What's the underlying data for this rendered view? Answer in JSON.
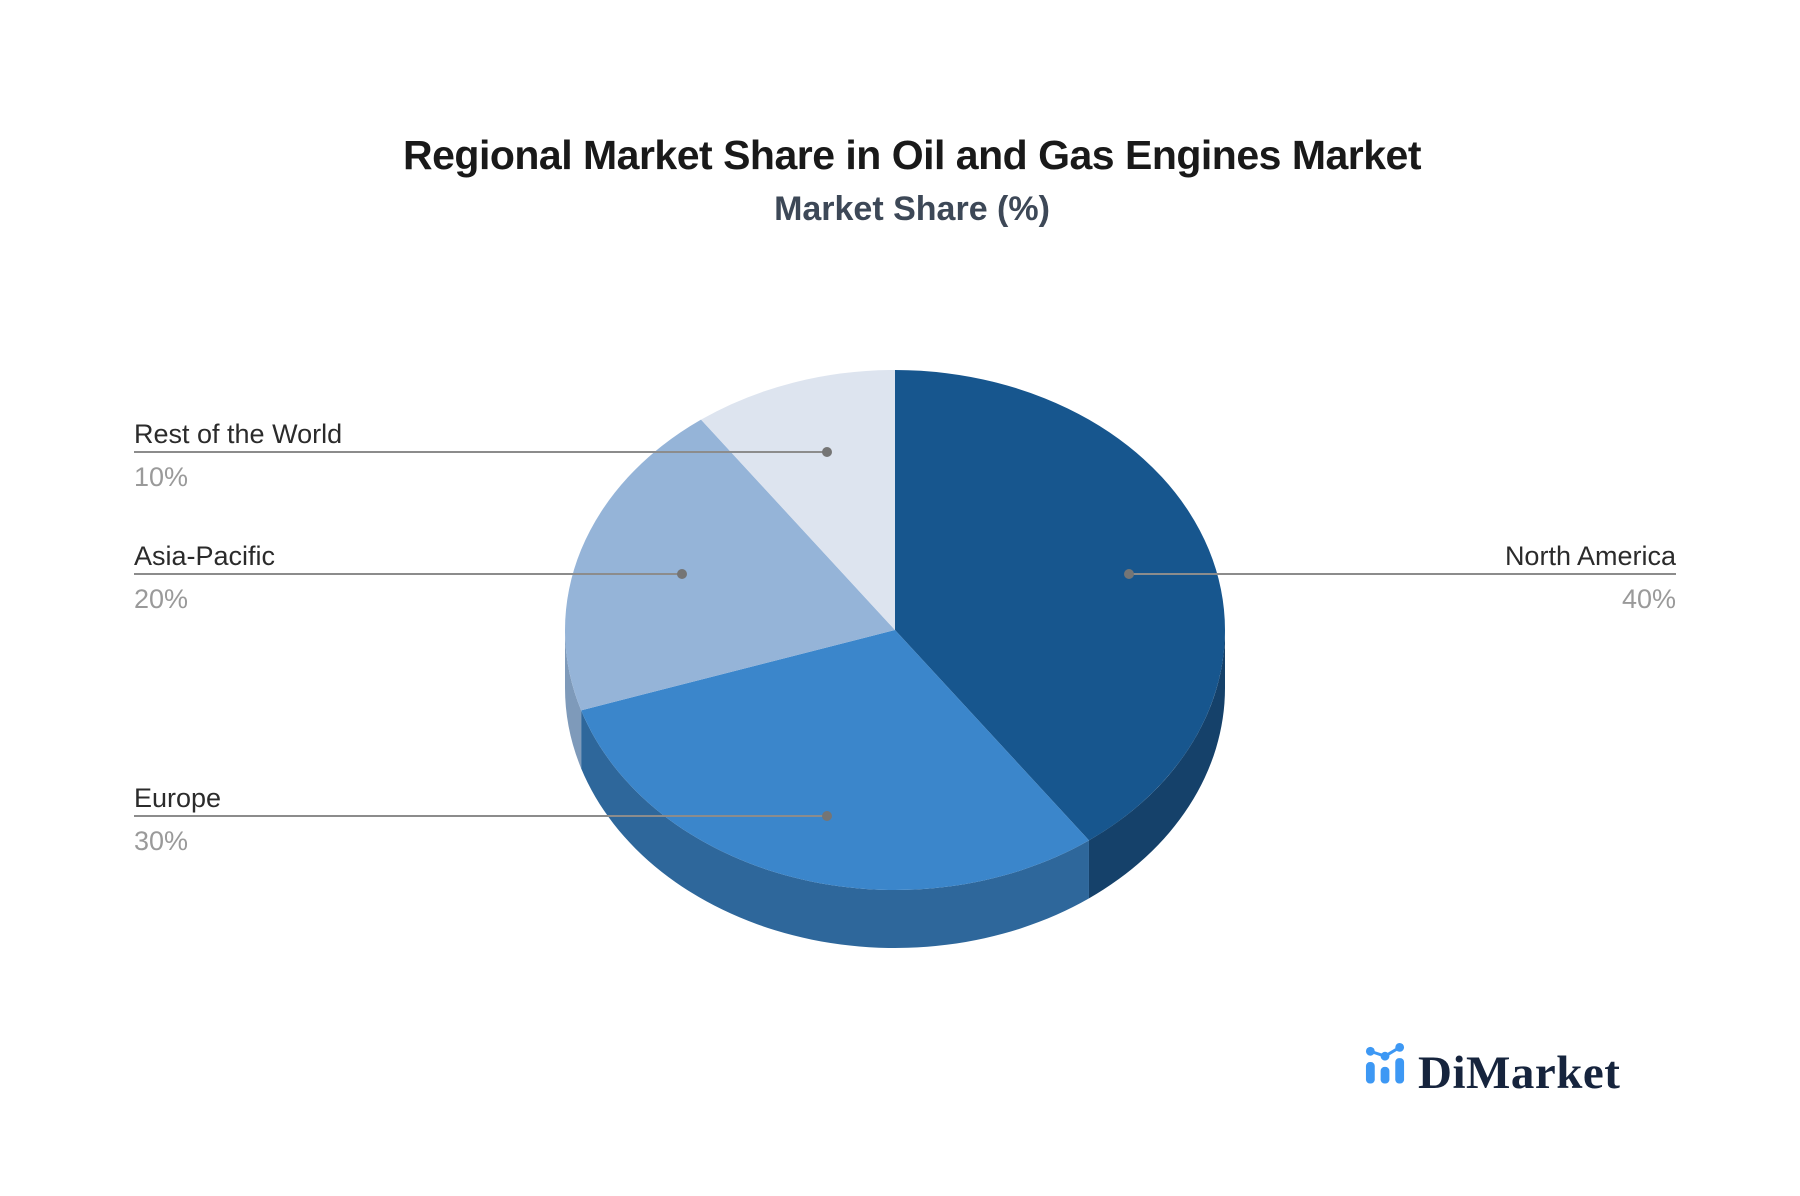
{
  "title": "Regional Market Share in Oil and Gas Engines Market",
  "subtitle": "Market Share (%)",
  "chart_data": {
    "type": "pie",
    "style": "3d",
    "title": "Regional Market Share in Oil and Gas Engines Market",
    "subtitle": "Market Share (%)",
    "unit": "%",
    "direction": "clockwise",
    "start_angle_deg": 0,
    "legend_position": "none",
    "slices": [
      {
        "label": "North America",
        "value": 40,
        "display": "40%",
        "color": "#17568E",
        "side_color": "#15416A",
        "label_side": "right"
      },
      {
        "label": "Europe",
        "value": 30,
        "display": "30%",
        "color": "#3B86CB",
        "side_color": "#2E679B",
        "label_side": "left"
      },
      {
        "label": "Asia-Pacific",
        "value": 20,
        "display": "20%",
        "color": "#95B4D8",
        "side_color": "#7E9ABA",
        "label_side": "left"
      },
      {
        "label": "Rest of the World",
        "value": 10,
        "display": "10%",
        "color": "#DDE4EF",
        "label_side": "left"
      }
    ],
    "leader_line_color": "#8C8C8C",
    "leader_dot_color": "#757575"
  },
  "brand": {
    "name": "DiMarket",
    "accent_color": "#3D98F4",
    "text_color": "#16243D"
  },
  "colors": {
    "background": "#FFFFFF",
    "title_text": "#191919",
    "subtitle_text": "#3D4857",
    "label_text": "#2B2B2B",
    "percent_text": "#9A9A9A"
  }
}
